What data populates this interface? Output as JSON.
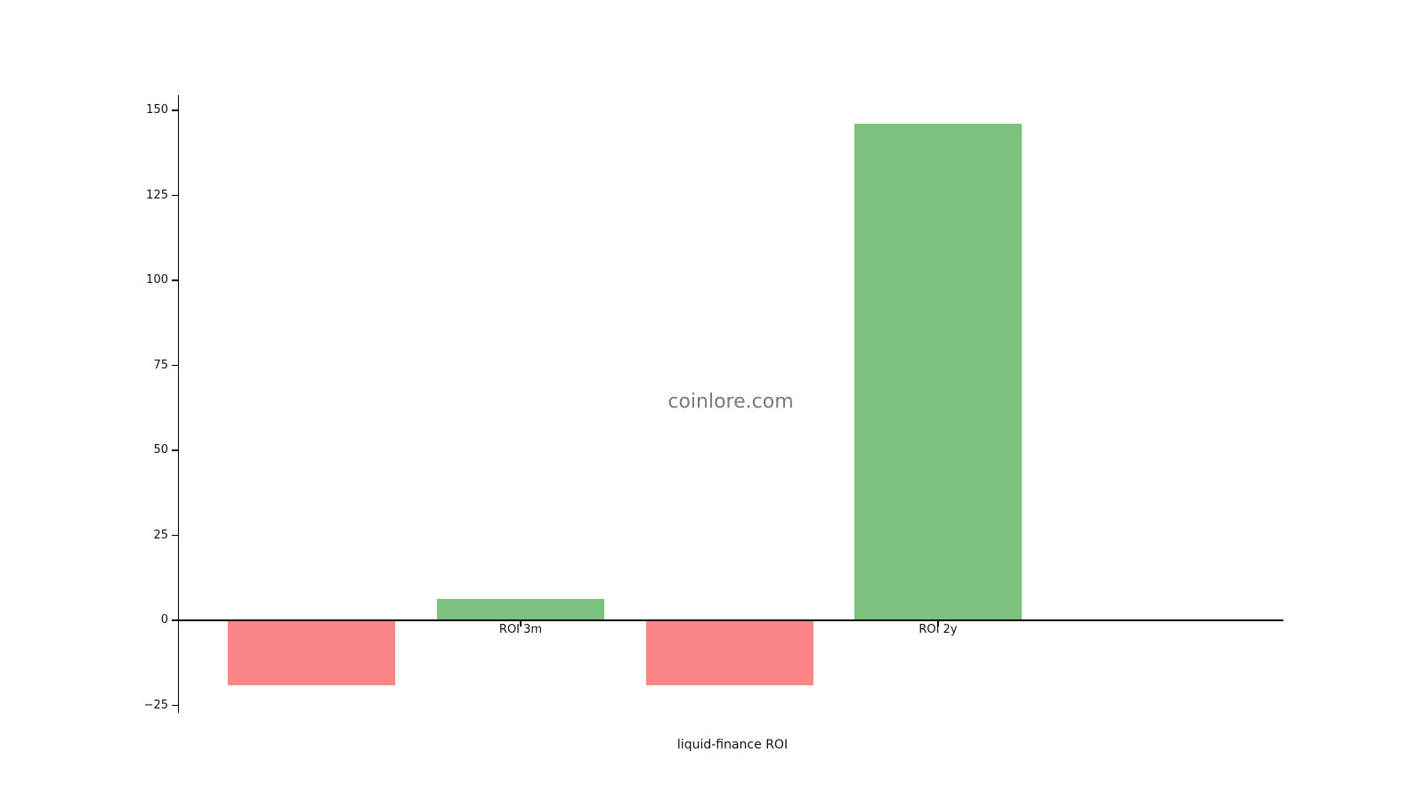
{
  "watermark": {
    "text": "coinlore.com",
    "color": "#7a7a7a"
  },
  "chart_data": {
    "type": "bar",
    "title": "",
    "xlabel": "liquid-finance ROI",
    "ylabel": "",
    "categories": [
      "",
      "ROI 3m",
      "",
      "ROI 2y"
    ],
    "values": [
      -19.1,
      6.2,
      -19.2,
      146.1
    ],
    "yticks": [
      150,
      125,
      100,
      75,
      50,
      25,
      0,
      -25
    ],
    "ylim": [
      -28,
      155
    ],
    "grid": false,
    "legend": null,
    "colors": {
      "positive_bar": "#7cc17c",
      "negative_bar": "#fc8585",
      "axis": "#000000",
      "tick_label": "#111111"
    }
  }
}
